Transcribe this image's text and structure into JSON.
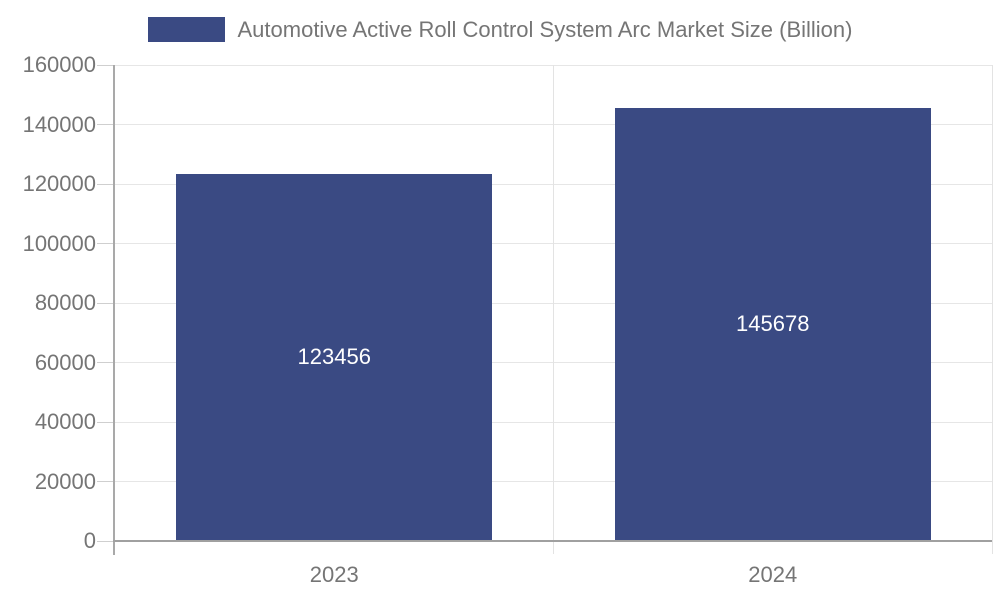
{
  "legend": {
    "label": "Automotive Active Roll Control System Arc Market Size (Billion)"
  },
  "colors": {
    "bar": "#3a4a83",
    "legend_swatch": "#3a4a83",
    "grid": "#e6e6e6",
    "axis": "#a0a0a0",
    "tick": "#cfcfcf",
    "text": "#757575",
    "bar_label": "#ffffff",
    "background": "#ffffff"
  },
  "chart_data": {
    "type": "bar",
    "categories": [
      "2023",
      "2024"
    ],
    "values": [
      123456,
      145678
    ],
    "data_labels": [
      "123456",
      "145678"
    ],
    "title": "Automotive Active Roll Control System Arc Market Size (Billion)",
    "xlabel": "",
    "ylabel": "",
    "ylim": [
      0,
      160000
    ],
    "ytick_step": 20000,
    "ytick_labels": [
      "0",
      "20000",
      "40000",
      "60000",
      "80000",
      "100000",
      "120000",
      "140000",
      "160000"
    ],
    "grid": true,
    "legend_position": "top",
    "bar_width_fraction": 0.72
  }
}
